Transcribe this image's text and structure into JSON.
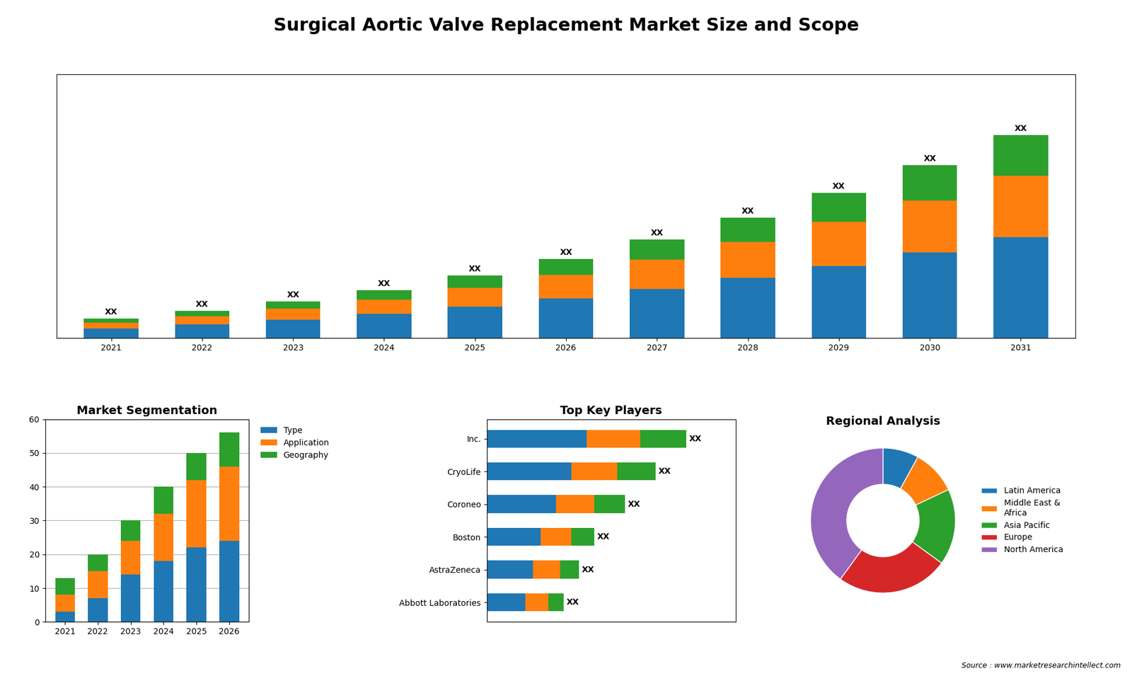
{
  "title": "Surgical Aortic Valve Replacement Market Size and Scope",
  "annotations": [
    "Source : www.marketresearchintellect.com"
  ],
  "chart_data": [
    {
      "type": "bar",
      "stacked": true,
      "data_labels": true,
      "tick_labels": "x",
      "categories": [
        "2021",
        "2022",
        "2023",
        "2024",
        "2025",
        "2026",
        "2027",
        "2028",
        "2029",
        "2030",
        "2031"
      ],
      "series": [
        {
          "values": [
            2.0,
            2.8,
            3.8,
            5.0,
            6.5,
            8.2,
            10.2,
            12.5,
            15.0,
            17.8,
            21.0
          ]
        },
        {
          "values": [
            1.2,
            1.7,
            2.3,
            3.0,
            3.9,
            5.0,
            6.2,
            7.6,
            9.2,
            10.9,
            12.8
          ]
        },
        {
          "values": [
            0.8,
            1.1,
            1.5,
            2.0,
            2.6,
            3.3,
            4.1,
            5.0,
            6.1,
            7.3,
            8.5
          ],
          "value_labels": [
            "XX",
            "XX",
            "XX",
            "XX",
            "XX",
            "XX",
            "XX",
            "XX",
            "XX",
            "XX",
            "XX"
          ]
        }
      ],
      "ylim": [
        0,
        54.99
      ]
    },
    {
      "type": "bar",
      "stacked": true,
      "title": "Market Segmentation",
      "grid": true,
      "legend": "upper left",
      "categories": [
        "2021",
        "2022",
        "2023",
        "2024",
        "2025",
        "2026"
      ],
      "series": [
        {
          "name": "Type",
          "values": [
            3,
            7,
            14,
            18,
            22,
            24
          ]
        },
        {
          "name": "Application",
          "values": [
            5,
            8,
            10,
            14,
            20,
            22
          ]
        },
        {
          "name": "Geography",
          "values": [
            5,
            5,
            6,
            8,
            8,
            10
          ]
        }
      ],
      "ylim": [
        0,
        60
      ],
      "yticks": [
        0,
        10,
        20,
        30,
        40,
        50,
        60
      ]
    },
    {
      "type": "bar",
      "stacked": true,
      "orientation": "horizontal",
      "title": "Top Key Players",
      "data_labels": true,
      "tick_labels": "y",
      "categories": [
        "Abbott Laboratories",
        "AstraZeneca",
        "Boston",
        "Coroneo",
        "CryoLife",
        "Inc."
      ],
      "series": [
        {
          "values": [
            2.5,
            3.0,
            3.5,
            4.5,
            5.5,
            6.5
          ]
        },
        {
          "values": [
            1.5,
            1.8,
            2.0,
            2.5,
            3.0,
            3.5
          ]
        },
        {
          "values": [
            1.0,
            1.2,
            1.5,
            2.0,
            2.5,
            3.0
          ],
          "value_labels": [
            "XX",
            "XX",
            "XX",
            "XX",
            "XX",
            "XX"
          ]
        }
      ],
      "xlim": [
        0,
        16.25
      ]
    },
    {
      "type": "pie",
      "title": "Regional Analysis",
      "legend": "center left",
      "categories": [
        "Latin America",
        "Middle East &\nAfrica",
        "Asia Pacific",
        "Europe",
        "North America"
      ],
      "values": [
        8,
        10,
        17,
        25,
        40
      ]
    }
  ]
}
